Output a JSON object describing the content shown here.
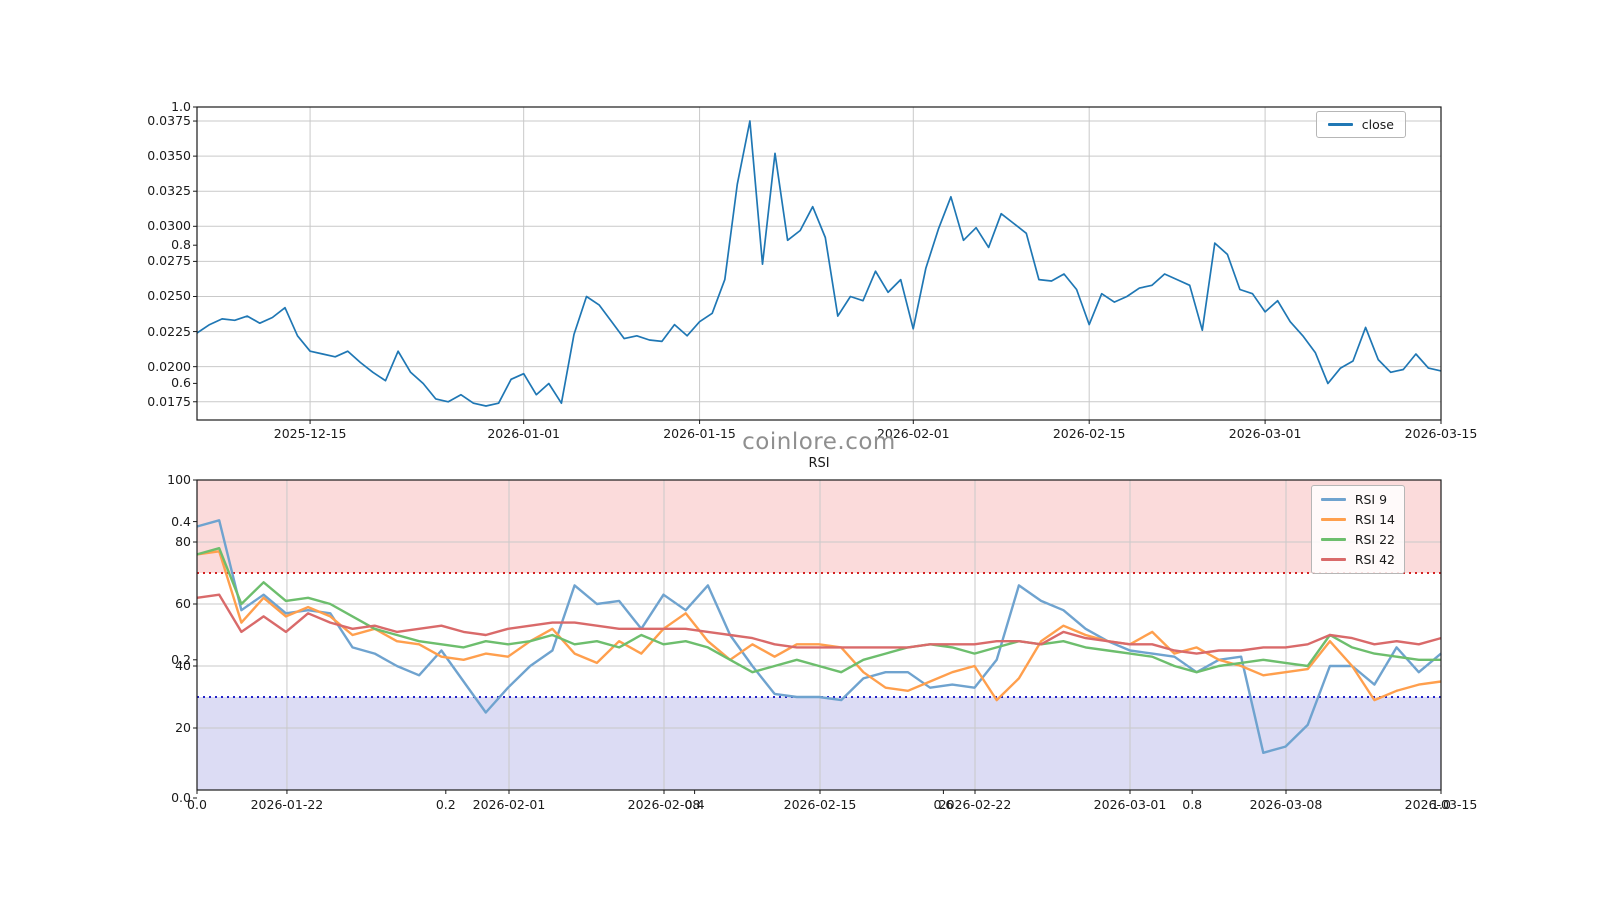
{
  "watermark": "coinlore.com",
  "chart_data": [
    {
      "type": "line",
      "title": "",
      "legend_label": "close",
      "color": "#1f77b4",
      "ylim": [
        0.0162,
        0.0385
      ],
      "grid": true,
      "legend_position": "upper right",
      "y_ticks": [
        {
          "v": 0.0375,
          "label": "0.0375"
        },
        {
          "v": 0.035,
          "label": "0.0350"
        },
        {
          "v": 0.0325,
          "label": "0.0325"
        },
        {
          "v": 0.03,
          "label": "0.0300"
        },
        {
          "v": 0.0275,
          "label": "0.0275"
        },
        {
          "v": 0.025,
          "label": "0.0250"
        },
        {
          "v": 0.0225,
          "label": "0.0225"
        },
        {
          "v": 0.02,
          "label": "0.0200"
        },
        {
          "v": 0.0175,
          "label": "0.0175"
        }
      ],
      "x_ticks": [
        {
          "label": "2025-12-15",
          "f": 0.0909
        },
        {
          "label": "2026-01-01",
          "f": 0.2626
        },
        {
          "label": "2026-01-15",
          "f": 0.404
        },
        {
          "label": "2026-02-01",
          "f": 0.5758
        },
        {
          "label": "2026-02-15",
          "f": 0.7172
        },
        {
          "label": "2026-03-01",
          "f": 0.8586
        },
        {
          "label": "2026-03-15",
          "f": 1.0
        }
      ],
      "values": [
        0.0224,
        0.023,
        0.0234,
        0.0233,
        0.0236,
        0.0231,
        0.0235,
        0.0242,
        0.0222,
        0.0211,
        0.0209,
        0.0207,
        0.0211,
        0.0203,
        0.0196,
        0.019,
        0.0211,
        0.0196,
        0.0188,
        0.0177,
        0.0175,
        0.018,
        0.0174,
        0.0172,
        0.0174,
        0.0191,
        0.0195,
        0.018,
        0.0188,
        0.0174,
        0.0223,
        0.025,
        0.0244,
        0.0232,
        0.022,
        0.0222,
        0.0219,
        0.0218,
        0.023,
        0.0222,
        0.0232,
        0.0238,
        0.0262,
        0.033,
        0.0375,
        0.0273,
        0.0352,
        0.029,
        0.0297,
        0.0314,
        0.0292,
        0.0236,
        0.025,
        0.0247,
        0.0268,
        0.0253,
        0.0262,
        0.0227,
        0.027,
        0.0298,
        0.0321,
        0.029,
        0.0299,
        0.0285,
        0.0309,
        0.0302,
        0.0295,
        0.0262,
        0.0261,
        0.0266,
        0.0255,
        0.023,
        0.0252,
        0.0246,
        0.025,
        0.0256,
        0.0258,
        0.0266,
        0.0262,
        0.0258,
        0.0226,
        0.0288,
        0.028,
        0.0255,
        0.0252,
        0.0239,
        0.0247,
        0.0232,
        0.0222,
        0.021,
        0.0188,
        0.0199,
        0.0204,
        0.0228,
        0.0205,
        0.0196,
        0.0198,
        0.0209,
        0.0199,
        0.0197
      ]
    },
    {
      "type": "line",
      "title": "RSI",
      "ylim": [
        0,
        100
      ],
      "grid": true,
      "legend_position": "upper right",
      "overbought_threshold": 70,
      "oversold_threshold": 30,
      "overbought_band_color": "#fbdbdb",
      "oversold_band_color": "#dcdcf4",
      "overbought_line_color": "#d42222",
      "oversold_line_color": "#2222c8",
      "y_ticks": [
        {
          "v": 100,
          "label": "100"
        },
        {
          "v": 80,
          "label": "80"
        },
        {
          "v": 60,
          "label": "60"
        },
        {
          "v": 40,
          "label": "40"
        },
        {
          "v": 20,
          "label": "20"
        }
      ],
      "x_ticks": [
        {
          "label": "2026-01-22",
          "f": 0.0723
        },
        {
          "label": "2026-02-01",
          "f": 0.2508
        },
        {
          "label": "2026-02-08",
          "f": 0.3754
        },
        {
          "label": "2026-02-15",
          "f": 0.5008
        },
        {
          "label": "2026-02-22",
          "f": 0.6254
        },
        {
          "label": "2026-03-01",
          "f": 0.75
        },
        {
          "label": "2026-03-08",
          "f": 0.8754
        },
        {
          "label": "2026-03-15",
          "f": 1.0
        }
      ],
      "series": [
        {
          "name": "RSI 9",
          "color": "#6fa3cf",
          "values": [
            85,
            87,
            58,
            63,
            57,
            58,
            57,
            46,
            44,
            40,
            37,
            45,
            35,
            25,
            33,
            40,
            45,
            66,
            60,
            61,
            52,
            63,
            58,
            66,
            50,
            40,
            31,
            30,
            30,
            29,
            36,
            38,
            38,
            33,
            34,
            33,
            42,
            66,
            61,
            58,
            52,
            48,
            45,
            44,
            43,
            38,
            42,
            43,
            12,
            14,
            21,
            40,
            40,
            34,
            46,
            38,
            44
          ]
        },
        {
          "name": "RSI 14",
          "color": "#ff9f4d",
          "values": [
            76,
            77,
            54,
            62,
            56,
            59,
            56,
            50,
            52,
            48,
            47,
            43,
            42,
            44,
            43,
            48,
            52,
            44,
            41,
            48,
            44,
            52,
            57,
            48,
            42,
            47,
            43,
            47,
            47,
            46,
            38,
            33,
            32,
            35,
            38,
            40,
            29,
            36,
            48,
            53,
            50,
            48,
            47,
            51,
            44,
            46,
            42,
            40,
            37,
            38,
            39,
            48,
            40,
            29,
            32,
            34,
            35
          ]
        },
        {
          "name": "RSI 22",
          "color": "#6dbe6d",
          "values": [
            76,
            78,
            60,
            67,
            61,
            62,
            60,
            56,
            52,
            50,
            48,
            47,
            46,
            48,
            47,
            48,
            50,
            47,
            48,
            46,
            50,
            47,
            48,
            46,
            42,
            38,
            40,
            42,
            40,
            38,
            42,
            44,
            46,
            47,
            46,
            44,
            46,
            48,
            47,
            48,
            46,
            45,
            44,
            43,
            40,
            38,
            40,
            41,
            42,
            41,
            40,
            50,
            46,
            44,
            43,
            42,
            42
          ]
        },
        {
          "name": "RSI 42",
          "color": "#d96a6a",
          "values": [
            62,
            63,
            51,
            56,
            51,
            57,
            54,
            52,
            53,
            51,
            52,
            53,
            51,
            50,
            52,
            53,
            54,
            54,
            53,
            52,
            52,
            52,
            52,
            51,
            50,
            49,
            47,
            46,
            46,
            46,
            46,
            46,
            46,
            47,
            47,
            47,
            48,
            48,
            47,
            51,
            49,
            48,
            47,
            47,
            45,
            44,
            45,
            45,
            46,
            46,
            47,
            50,
            49,
            47,
            48,
            47,
            49
          ]
        }
      ]
    }
  ],
  "overlay_axis": {
    "x_ticks": [
      {
        "label": "0.0",
        "f": 0.0
      },
      {
        "label": "0.2",
        "f": 0.2
      },
      {
        "label": "0.4",
        "f": 0.4
      },
      {
        "label": "0.6",
        "f": 0.6
      },
      {
        "label": "0.8",
        "f": 0.8
      },
      {
        "label": "1.0",
        "f": 1.0
      }
    ],
    "y_ticks": [
      {
        "label": "0.0",
        "f": 0.0
      },
      {
        "label": "0.2",
        "f": 0.2
      },
      {
        "label": "0.4",
        "f": 0.4
      },
      {
        "label": "0.6",
        "f": 0.6
      },
      {
        "label": "0.8",
        "f": 0.8
      },
      {
        "label": "1.0",
        "f": 1.0
      }
    ]
  }
}
